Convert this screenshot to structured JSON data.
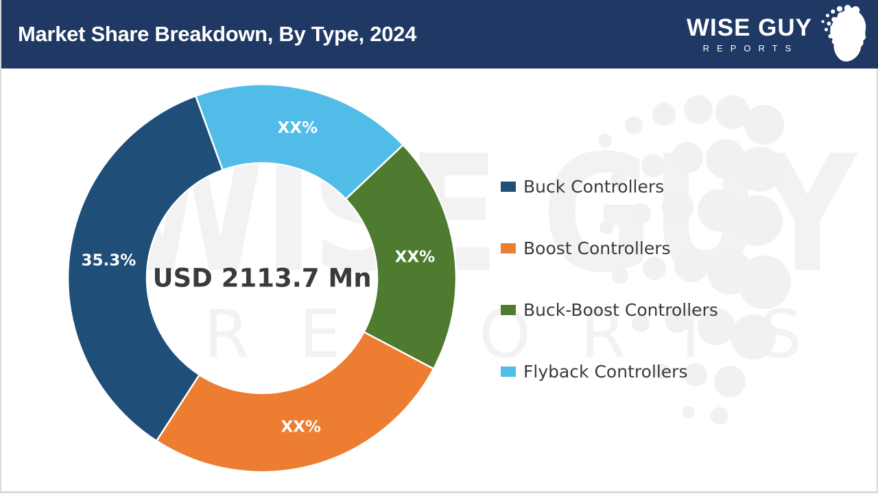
{
  "header": {
    "title": "Market Share Breakdown, By Type, 2024",
    "logo": {
      "brand": "WISE GUY",
      "sub": "REPORTS"
    }
  },
  "chart_data": {
    "type": "donut",
    "title": "Market Share Breakdown, By Type, 2024",
    "center_label": "USD 2113.7 Mn",
    "start_angle_deg": 340,
    "value_units": "percent_share",
    "series": [
      {
        "name": "Flyback Controllers",
        "value": 18.5,
        "label": "XX%",
        "color": "#51BCE8"
      },
      {
        "name": "Buck-Boost Controllers",
        "value": 19.8,
        "label": "XX%",
        "color": "#4E7B2F"
      },
      {
        "name": "Boost Controllers",
        "value": 26.4,
        "label": "XX%",
        "color": "#ED7D31"
      },
      {
        "name": "Buck Controllers",
        "value": 35.3,
        "label": "35.3%",
        "color": "#1F4E79"
      }
    ],
    "legend_position": "right"
  },
  "legend": {
    "items": [
      {
        "label": "Buck Controllers",
        "color": "#1F4E79"
      },
      {
        "label": "Boost Controllers",
        "color": "#ED7D31"
      },
      {
        "label": "Buck-Boost Controllers",
        "color": "#4E7B2F"
      },
      {
        "label": "Flyback Controllers",
        "color": "#51BCE8"
      }
    ]
  },
  "watermark": {
    "line1": "WISE GUY",
    "line2": "REPORTS"
  },
  "colors": {
    "header_bg": "#1F3864",
    "page_border": "#D9D9D9",
    "center_text": "#3A3A3A",
    "legend_text": "#3A3A3A",
    "watermark": "#F2F2F2"
  }
}
